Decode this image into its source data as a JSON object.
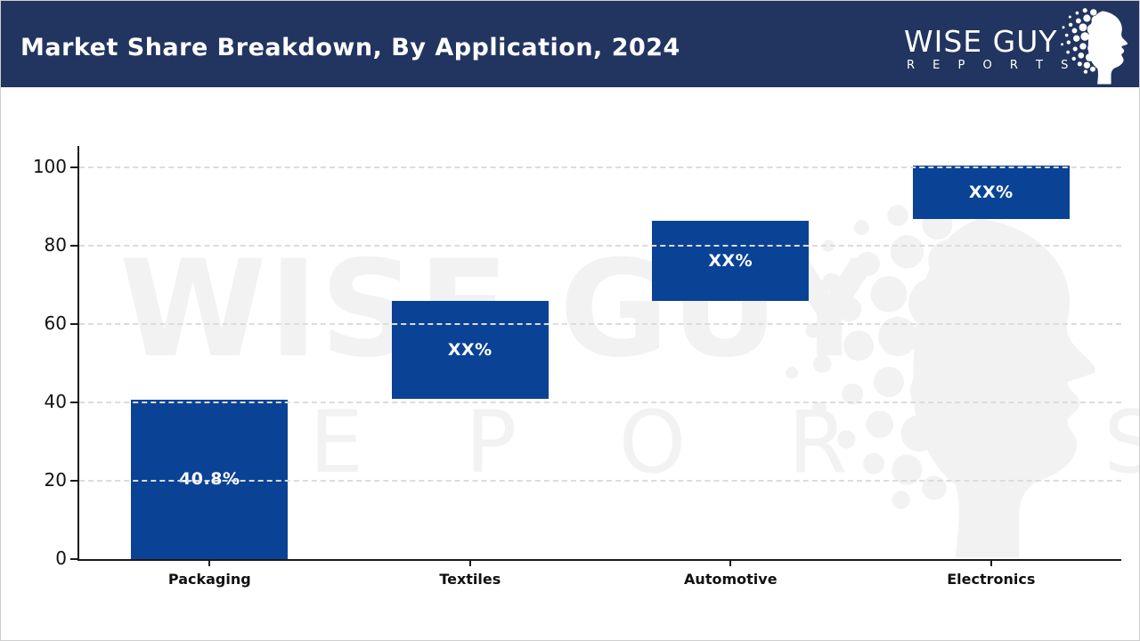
{
  "header": {
    "title": "Market Share Breakdown, By Application, 2024",
    "background_color": "#223560",
    "logo": {
      "line1": "WISE GUY",
      "line2": "R E P O R T S",
      "head_icon": "wiseguy-head-icon",
      "color": "#ffffff"
    }
  },
  "watermark": {
    "line1": "WISE GUY",
    "line2": "R E P O R T S",
    "head_icon": "wiseguy-head-icon",
    "color": "#f2f2f2"
  },
  "chart_data": {
    "type": "bar",
    "subtype": "waterfall",
    "title": "Market Share Breakdown, By Application, 2024",
    "categories": [
      "Packaging",
      "Textiles",
      "Automotive",
      "Electronics"
    ],
    "segments": [
      {
        "category": "Packaging",
        "start": 0,
        "end": 40.8,
        "label": "40.8%"
      },
      {
        "category": "Textiles",
        "start": 41,
        "end": 65.9,
        "label": "XX%"
      },
      {
        "category": "Automotive",
        "start": 66,
        "end": 86.4,
        "label": "XX%"
      },
      {
        "category": "Electronics",
        "start": 86.8,
        "end": 100.4,
        "label": "XX%"
      }
    ],
    "yticks": [
      0,
      20,
      40,
      60,
      80,
      100
    ],
    "ylim": [
      0,
      105.5
    ],
    "grid": "dashed-horizontal",
    "legend": "none",
    "bar_color": "#0a4296",
    "bar_label_color": "#ffffff",
    "axis_color": "#1a1a1a",
    "gridline_color": "#dcdcdc",
    "tick_label_color": "#111111"
  }
}
